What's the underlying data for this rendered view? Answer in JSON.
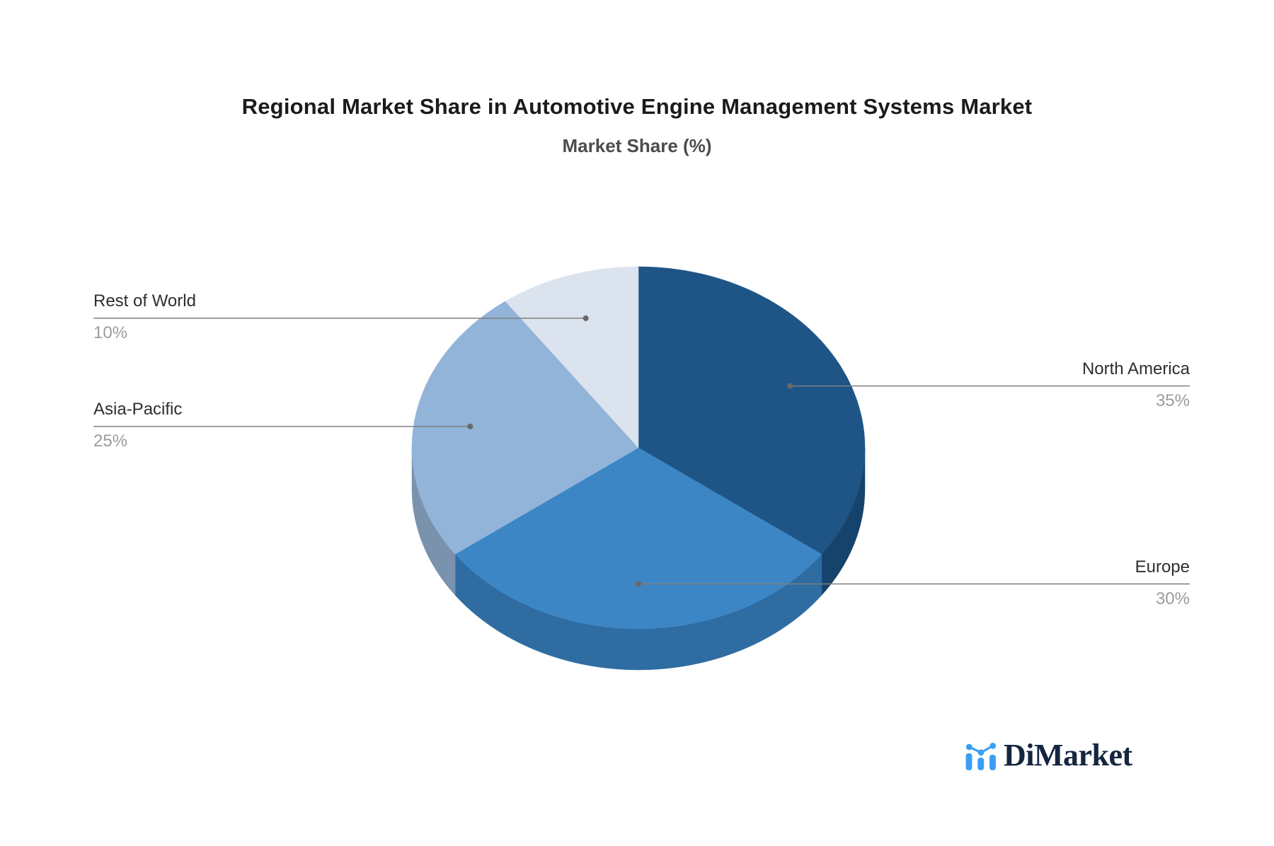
{
  "title": "Regional Market Share in Automotive Engine Management Systems Market",
  "subtitle": "Market Share (%)",
  "logo": {
    "text": "DiMarket",
    "icon": "bar-chart-logo-icon",
    "icon_color": "#3b9ef5",
    "text_color": "#162540"
  },
  "chart_data": {
    "type": "pie",
    "title": "Regional Market Share in Automotive Engine Management Systems Market",
    "subtitle": "Market Share (%)",
    "unit": "%",
    "start_angle_deg": 0,
    "direction": "clockwise",
    "effect": "3d",
    "legend": "none",
    "categories": [
      "North America",
      "Europe",
      "Asia-Pacific",
      "Rest of World"
    ],
    "values": [
      35,
      30,
      25,
      10
    ],
    "slices": [
      {
        "label": "North America",
        "value": 35,
        "display": "35%",
        "color": "#1e5586",
        "side_color": "#16436b"
      },
      {
        "label": "Europe",
        "value": 30,
        "display": "30%",
        "color": "#3d86c5",
        "side_color": "#2f6ca2"
      },
      {
        "label": "Asia-Pacific",
        "value": 25,
        "display": "25%",
        "color": "#92b4d9",
        "side_color": "#7b92ad"
      },
      {
        "label": "Rest of World",
        "value": 10,
        "display": "10%",
        "color": "#dbe3ee",
        "side_color": "#b9c4d6"
      }
    ],
    "connector_line_color": "#7f7f7f",
    "connector_dot_color": "#696969",
    "label_text_color": "#2e2e2e",
    "percent_text_color": "#9b9b9b"
  }
}
